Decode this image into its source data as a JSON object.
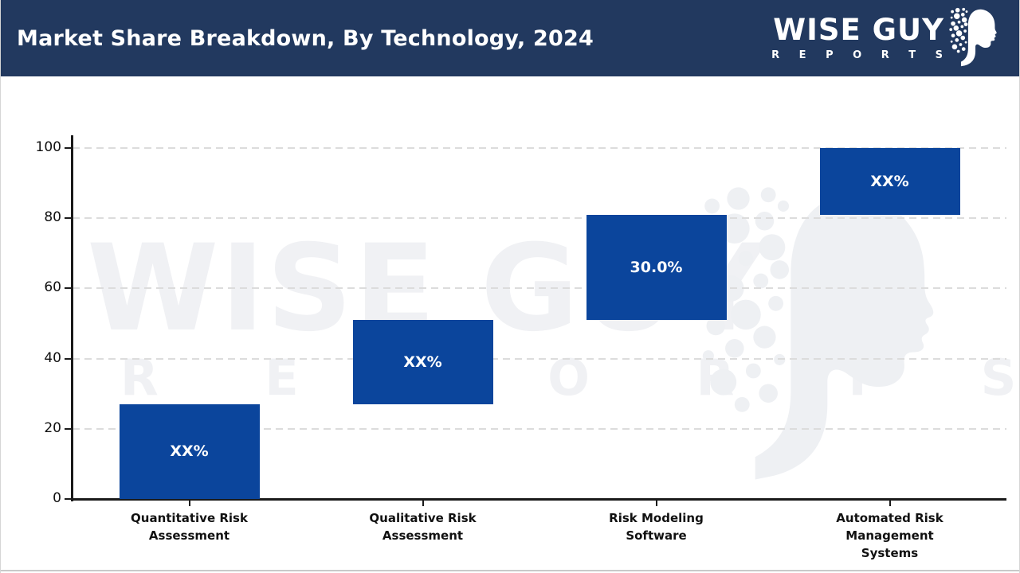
{
  "header": {
    "title": "Market Share Breakdown, By Technology, 2024",
    "logo": {
      "line1": "WISE GUY",
      "line2": "R E P O R T S"
    }
  },
  "watermark": {
    "line1": "WISE GUY",
    "line2": "R E P O R T S"
  },
  "colors": {
    "header_bg": "#22395f",
    "bar_blue": "#0b459c",
    "grid_gray": "#dcdcdc",
    "watermark_gray": "#f0f1f4",
    "axis_black": "#1a1a1a",
    "bar_label_white": "#ffffff"
  },
  "chart_data": {
    "type": "bar",
    "variant": "stacked-waterfall",
    "title": "Market Share Breakdown, By Technology, 2024",
    "categories": [
      "Quantitative Risk Assessment",
      "Qualitative Risk Assessment",
      "Risk Modeling Software",
      "Automated Risk Management Systems"
    ],
    "segments": [
      {
        "category": "Quantitative Risk Assessment",
        "start": 0,
        "end": 27,
        "value": 27,
        "label": "XX%"
      },
      {
        "category": "Qualitative Risk Assessment",
        "start": 27,
        "end": 51,
        "value": 24,
        "label": "XX%"
      },
      {
        "category": "Risk Modeling Software",
        "start": 51,
        "end": 81,
        "value": 30,
        "label": "30.0%"
      },
      {
        "category": "Automated Risk Management Systems",
        "start": 81,
        "end": 100,
        "value": 19,
        "label": "XX%"
      }
    ],
    "yticks": [
      0,
      20,
      40,
      60,
      80,
      100
    ],
    "ylim": [
      0,
      105
    ],
    "xlabel": "",
    "ylabel": "",
    "grid": "dashed-horizontal",
    "legend": "none",
    "bar_color": "#0b459c",
    "label_color": "#ffffff"
  }
}
